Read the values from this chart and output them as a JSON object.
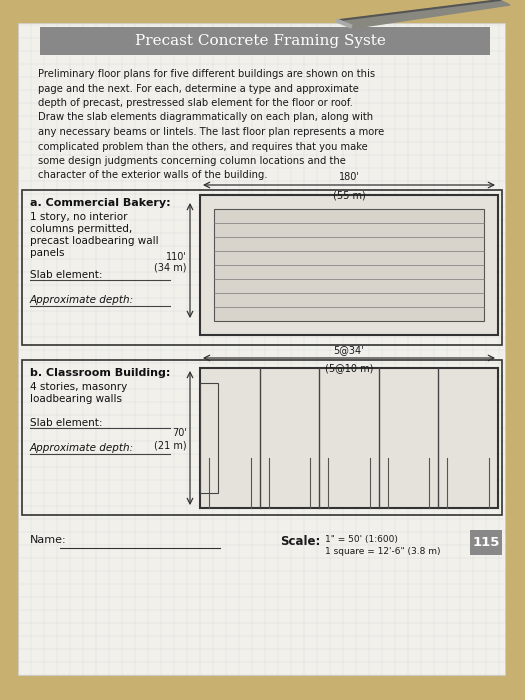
{
  "title": "Precast Concrete Framing Syste",
  "title_bg": "#888888",
  "title_color": "#ffffff",
  "page_bg": "#c8b070",
  "paper_bg": "#f2f0eb",
  "grid_color": "#b8c8d0",
  "body_text_line1": "Preliminary floor plans for five different buildings are shown on this",
  "body_text_line2": "page and the next. For each, determine a type and approximate",
  "body_text_line3": "depth of precast, prestressed slab element for the floor or roof.",
  "body_text_line4": "Draw the slab elements diagrammatically on each plan, along with",
  "body_text_line5": "any necessary beams or lintels. The last floor plan represents a more",
  "body_text_line6": "complicated problem than the others, and requires that you make",
  "body_text_line7": "some design judgments concerning column locations and the",
  "body_text_line8": "character of the exterior walls of the building.",
  "sec_a_title": "a. Commercial Bakery:",
  "sec_a_line1": "1 story, no interior",
  "sec_a_line2": "columns permitted,",
  "sec_a_line3": "precast loadbearing wall",
  "sec_a_line4": "panels",
  "sec_a_slab": "Slab element:",
  "sec_a_depth": "Approximate depth:",
  "sec_a_w_dim": "180'",
  "sec_a_w_dim2": "(55 m)",
  "sec_a_h_dim": "110'",
  "sec_a_h_dim2": "(34 m)",
  "sec_b_title": "b. Classroom Building:",
  "sec_b_line1": "4 stories, masonry",
  "sec_b_line2": "loadbearing walls",
  "sec_b_slab": "Slab element:",
  "sec_b_depth": "Approximate depth:",
  "sec_b_w_dim": "5@34'",
  "sec_b_w_dim2": "(5@10 m)",
  "sec_b_h_dim": "70'",
  "sec_b_h_dim2": "(21 m)",
  "name_label": "Name:",
  "scale_label": "Scale:",
  "scale_val1": "1\" = 50' (1:600)",
  "scale_val2": "1 square = 12'-6\" (3.8 m)",
  "page_num": "115"
}
